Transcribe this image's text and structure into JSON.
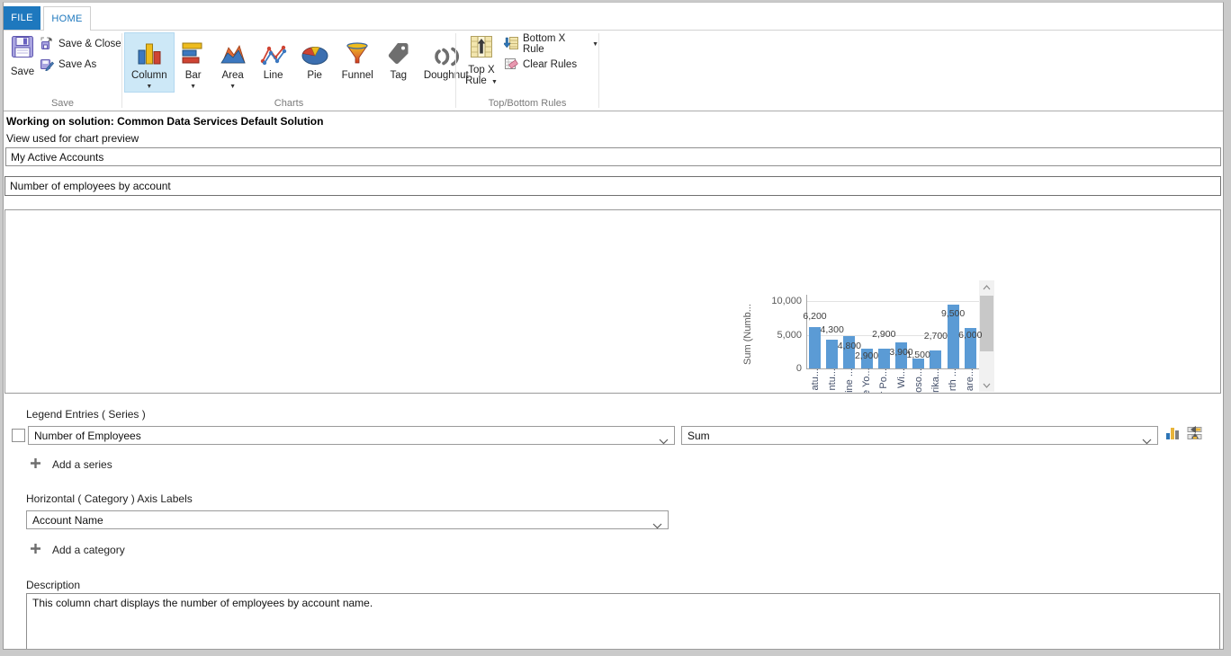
{
  "ribbon": {
    "tabs": {
      "file": "FILE",
      "home": "HOME"
    },
    "groups": {
      "save": {
        "label": "Save",
        "save_button": "Save",
        "save_close_button": "Save & Close",
        "save_as_button": "Save As"
      },
      "charts": {
        "label": "Charts",
        "buttons": [
          {
            "label": "Column",
            "selected": true,
            "dropdown": true
          },
          {
            "label": "Bar",
            "selected": false,
            "dropdown": true
          },
          {
            "label": "Area",
            "selected": false,
            "dropdown": true
          },
          {
            "label": "Line",
            "selected": false,
            "dropdown": false
          },
          {
            "label": "Pie",
            "selected": false,
            "dropdown": false
          },
          {
            "label": "Funnel",
            "selected": false,
            "dropdown": false
          },
          {
            "label": "Tag",
            "selected": false,
            "dropdown": false
          },
          {
            "label": "Doughnut",
            "selected": false,
            "dropdown": false
          }
        ]
      },
      "rules": {
        "label": "Top/Bottom Rules",
        "top_x_button": "Top X Rule",
        "bottom_x_button": "Bottom X Rule",
        "clear_button": "Clear Rules"
      }
    }
  },
  "status": {
    "solution_banner": "Working on solution: Common Data Services Default Solution",
    "view_caption": "View used for chart preview",
    "view_name": "My Active Accounts"
  },
  "chart_title": "Number of employees by account",
  "chart_data": {
    "type": "bar",
    "orientation": "column",
    "ylabel": "Sum (Numb...",
    "categories": [
      "atu...",
      "ntu...",
      "ine ...",
      "e Yo...",
      "r Po...",
      "Wi...",
      "oso...",
      "rika...",
      "rth ...",
      "are..."
    ],
    "values": [
      6200,
      4300,
      4800,
      2900,
      2900,
      3900,
      1500,
      2700,
      9500,
      6000
    ],
    "value_labels": [
      "6,200",
      "4,300",
      "4,800",
      "2,900",
      "2,900",
      "3,900",
      "1,500",
      "2,700",
      "9,500",
      "6,000"
    ],
    "yticks": [
      {
        "value": 0,
        "label": "0"
      },
      {
        "value": 5000,
        "label": "5,000"
      },
      {
        "value": 10000,
        "label": "10,000"
      }
    ],
    "ylim": [
      0,
      10000
    ],
    "grid": true,
    "legend": "none",
    "bar_color": "#5b9bd5"
  },
  "series_section": {
    "label": "Legend Entries ( Series )",
    "field_value": "Number of Employees",
    "aggregate_value": "Sum",
    "add_label": "Add a series"
  },
  "category_section": {
    "label": "Horizontal ( Category ) Axis Labels",
    "field_value": "Account Name",
    "add_label": "Add a category"
  },
  "description_section": {
    "label": "Description",
    "value": "This column chart displays the number of employees by account name."
  },
  "colors": {
    "accent_blue": "#1e78be",
    "bar_fill": "#5b9bd5",
    "selected_chart_bg": "#cde8f7"
  }
}
